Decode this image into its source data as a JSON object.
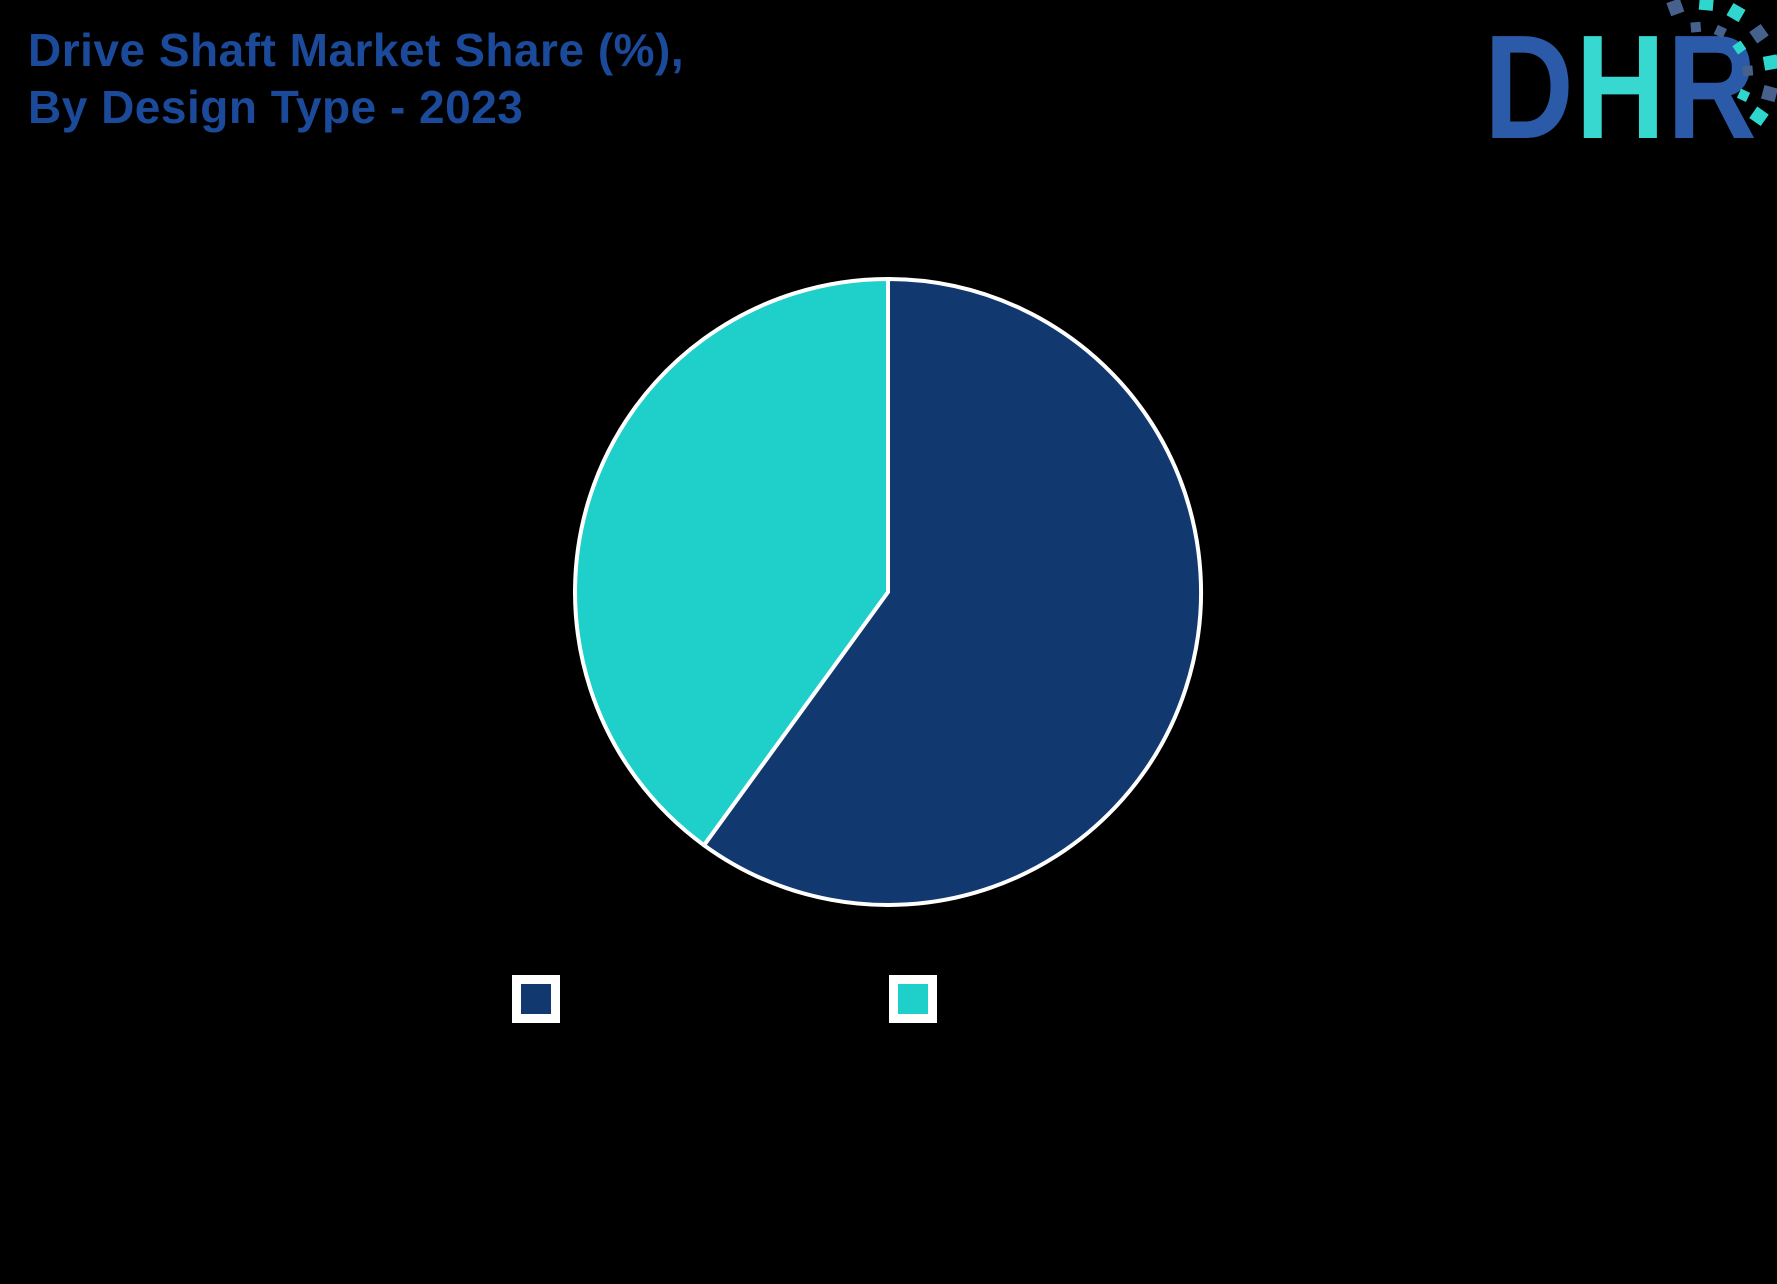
{
  "page": {
    "background_color": "#000000"
  },
  "header": {
    "title_line1": "Drive Shaft Market Share (%),",
    "title_line2": "By Design Type - 2023",
    "title_color": "#1c4a9a"
  },
  "logo": {
    "name": "DHR",
    "letters": [
      {
        "char": "D",
        "color": "#2b5aa8"
      },
      {
        "char": "H",
        "color": "#36d8cf"
      },
      {
        "char": "R",
        "color": "#2b5aa8"
      }
    ],
    "dot_colors": {
      "teal": "#2fd6ce",
      "slate": "#46618c"
    }
  },
  "chart_data": {
    "type": "pie",
    "title": "Drive Shaft Market Share (%), By Design Type - 2023",
    "series": [
      {
        "name": "",
        "value": 60,
        "color": "#11386f"
      },
      {
        "name": "",
        "value": 40,
        "color": "#1fcfc9"
      }
    ],
    "start_angle_deg": 0,
    "direction": "clockwise",
    "slice_outline_color": "#ffffff",
    "legend_position": "bottom",
    "grid": false
  },
  "legend": {
    "items": [
      {
        "label": "",
        "color": "#11386f"
      },
      {
        "label": "",
        "color": "#1fcfc9"
      }
    ]
  }
}
